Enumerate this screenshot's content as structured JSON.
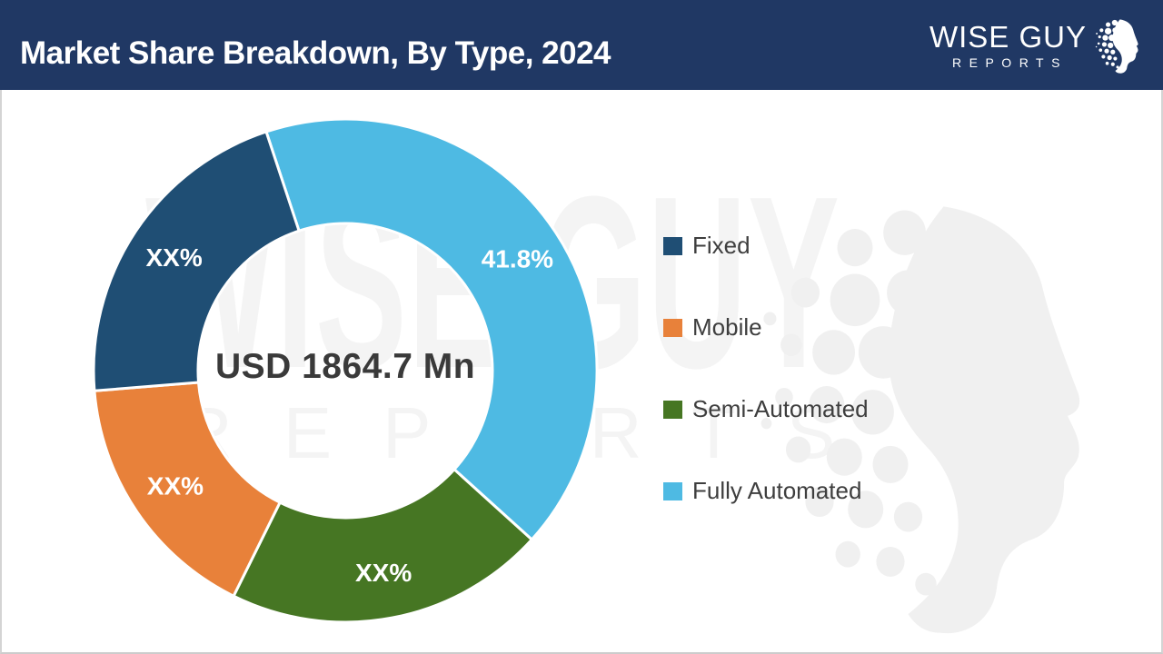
{
  "header": {
    "title": "Market Share Breakdown, By Type, 2024",
    "logo": {
      "word": "WISE GUY",
      "sub": "REPORTS"
    }
  },
  "watermark": {
    "line1": "WISE GUY",
    "line2": "REPORTS"
  },
  "chart_data": {
    "type": "donut",
    "title": "Market Share Breakdown, By Type, 2024",
    "center_label": "USD 1864.7 Mn",
    "start_angle_deg": -18.3,
    "direction": "clockwise",
    "segments": [
      {
        "name": "Fully Automated",
        "label": "41.8%",
        "value_pct": 41.8,
        "color": "#4EBAE3"
      },
      {
        "name": "Semi-Automated",
        "label": "XX%",
        "value_pct": 20.6,
        "color": "#467623"
      },
      {
        "name": "Mobile",
        "label": "XX%",
        "value_pct": 16.4,
        "color": "#E8813A"
      },
      {
        "name": "Fixed",
        "label": "XX%",
        "value_pct": 21.2,
        "color": "#1F4E74"
      }
    ],
    "legend": {
      "position": "right",
      "items": [
        {
          "label": "Fixed",
          "color": "#1F4E74"
        },
        {
          "label": "Mobile",
          "color": "#E8813A"
        },
        {
          "label": "Semi-Automated",
          "color": "#467623"
        },
        {
          "label": "Fully Automated",
          "color": "#4EBAE3"
        }
      ]
    }
  },
  "colors": {
    "header_bg": "#203864",
    "body_bg": "#FFFFFF",
    "border": "#D4D4D4",
    "center_text": "#3A3A3A",
    "segment_label_text": "#FFFFFF",
    "watermark": "#F4F4F4"
  }
}
